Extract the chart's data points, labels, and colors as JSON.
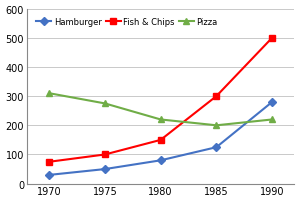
{
  "years": [
    1970,
    1975,
    1980,
    1985,
    1990
  ],
  "hamburger": [
    30,
    50,
    80,
    125,
    280
  ],
  "fish_chips": [
    75,
    100,
    150,
    300,
    500
  ],
  "pizza": [
    310,
    275,
    220,
    200,
    220
  ],
  "hamburger_color": "#4472C4",
  "fish_chips_color": "#FF0000",
  "pizza_color": "#70AD47",
  "ylim": [
    0,
    600
  ],
  "yticks": [
    0,
    100,
    200,
    300,
    400,
    500,
    600
  ],
  "xticks": [
    1970,
    1975,
    1980,
    1985,
    1990
  ],
  "legend_labels": [
    "Hamburger",
    "Fish & Chips",
    "Pizza"
  ],
  "background_color": "#FFFFFF",
  "grid_color": "#C0C0C0"
}
